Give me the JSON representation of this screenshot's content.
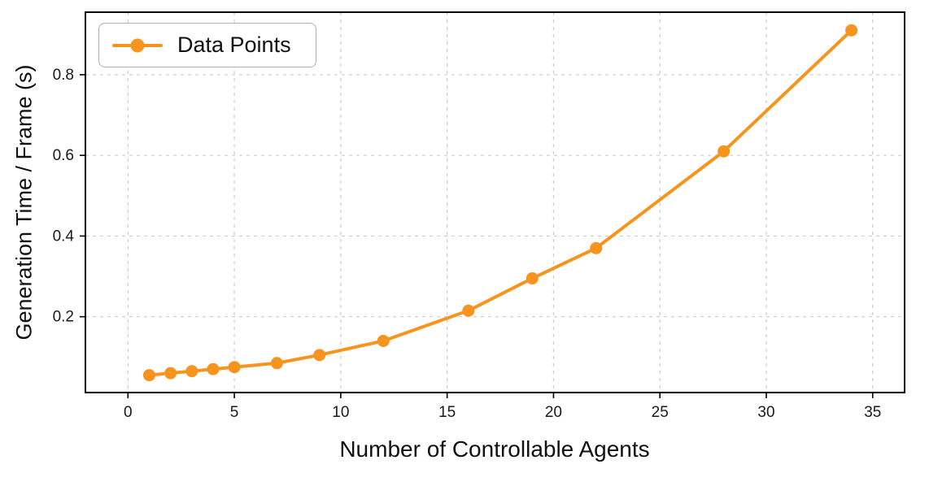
{
  "chart_data": {
    "type": "line",
    "series": [
      {
        "name": "Data Points",
        "x": [
          1,
          2,
          3,
          4,
          5,
          7,
          9,
          12,
          16,
          19,
          22,
          28,
          34
        ],
        "y": [
          0.055,
          0.06,
          0.065,
          0.07,
          0.075,
          0.085,
          0.105,
          0.14,
          0.215,
          0.295,
          0.37,
          0.61,
          0.91
        ]
      }
    ],
    "title": "",
    "xlabel": "Number of Controllable Agents",
    "ylabel": "Generation Time / Frame (s)",
    "legend": [
      "Data Points"
    ],
    "legend_position": "upper left",
    "xlim": [
      -2,
      36.5
    ],
    "ylim": [
      0.012,
      0.955
    ],
    "xticks": [
      0,
      5,
      10,
      15,
      20,
      25,
      30,
      35
    ],
    "yticks": [
      0.2,
      0.4,
      0.6,
      0.8
    ],
    "grid": true,
    "grid_style": "dashed",
    "line_color": "#f7941d",
    "grid_color": "#cccccc",
    "axis_color": "#000000",
    "text_color": "#1a1a1a",
    "marker": "circle"
  }
}
